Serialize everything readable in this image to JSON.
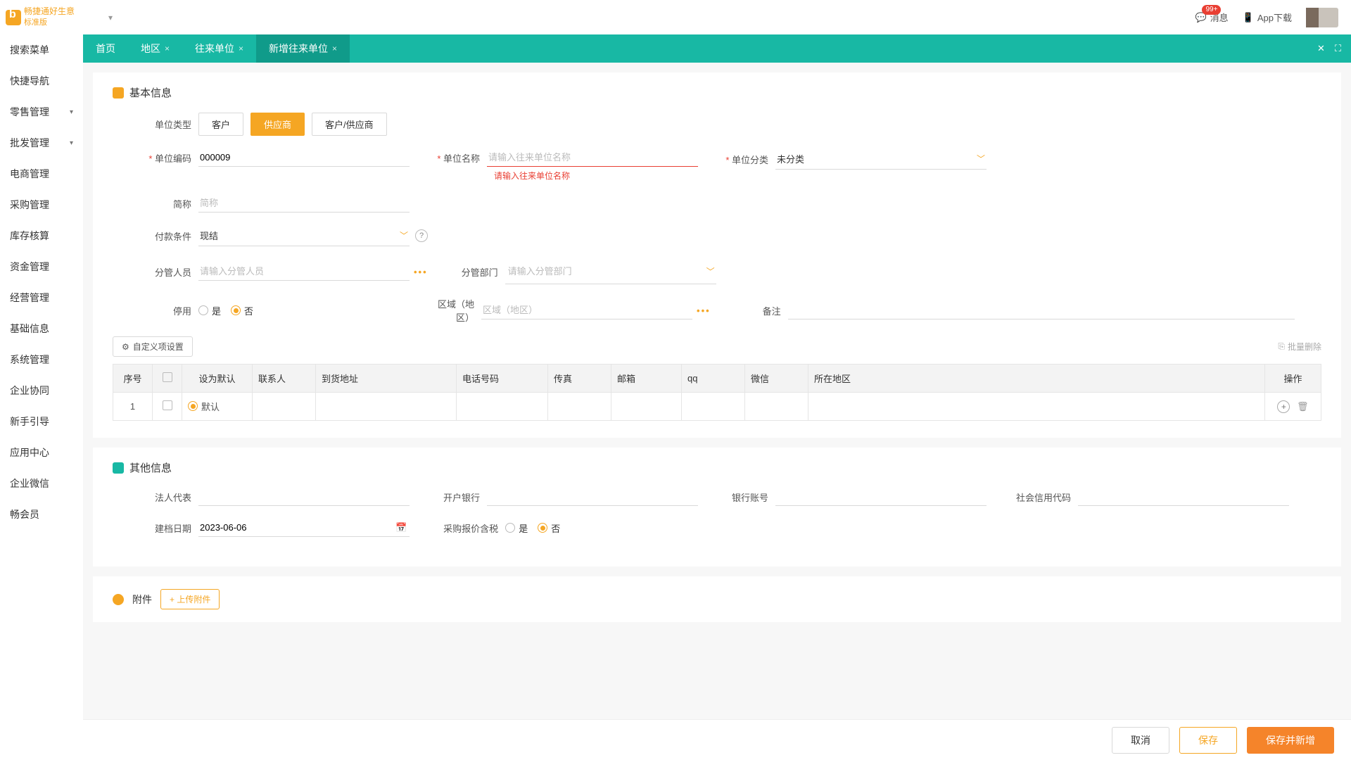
{
  "logo": {
    "brand": "畅捷通好生意",
    "edition": "标准版"
  },
  "topbar": {
    "msg_label": "消息",
    "msg_badge": "99+",
    "download_label": "App下载"
  },
  "sidebar": {
    "items": [
      {
        "label": "搜索菜单",
        "expandable": false
      },
      {
        "label": "快捷导航",
        "expandable": false
      },
      {
        "label": "零售管理",
        "expandable": true
      },
      {
        "label": "批发管理",
        "expandable": true
      },
      {
        "label": "电商管理",
        "expandable": false
      },
      {
        "label": "采购管理",
        "expandable": false
      },
      {
        "label": "库存核算",
        "expandable": false
      },
      {
        "label": "资金管理",
        "expandable": false
      },
      {
        "label": "经营管理",
        "expandable": false
      },
      {
        "label": "基础信息",
        "expandable": false
      },
      {
        "label": "系统管理",
        "expandable": false
      },
      {
        "label": "企业协同",
        "expandable": false
      },
      {
        "label": "新手引导",
        "expandable": false
      },
      {
        "label": "应用中心",
        "expandable": false
      },
      {
        "label": "企业微信",
        "expandable": false
      },
      {
        "label": "畅会员",
        "expandable": false
      }
    ]
  },
  "tabs": [
    {
      "label": "首页",
      "closable": false,
      "active": false
    },
    {
      "label": "地区",
      "closable": true,
      "active": false
    },
    {
      "label": "往来单位",
      "closable": true,
      "active": false
    },
    {
      "label": "新增往来单位",
      "closable": true,
      "active": true
    }
  ],
  "basic": {
    "section_title": "基本信息",
    "unit_type_label": "单位类型",
    "unit_type_options": [
      "客户",
      "供应商",
      "客户/供应商"
    ],
    "unit_type_selected": 1,
    "code_label": "单位编码",
    "code_value": "000009",
    "name_label": "单位名称",
    "name_placeholder": "请输入往来单位名称",
    "name_error": "请输入往来单位名称",
    "category_label": "单位分类",
    "category_value": "未分类",
    "short_label": "简称",
    "short_placeholder": "简称",
    "pay_label": "付款条件",
    "pay_value": "现结",
    "manager_label": "分管人员",
    "manager_placeholder": "请输入分管人员",
    "dept_label": "分管部门",
    "dept_placeholder": "请输入分管部门",
    "disabled_label": "停用",
    "yes": "是",
    "no": "否",
    "region_label": "区域（地区）",
    "region_placeholder": "区域（地区）",
    "remark_label": "备注",
    "custom_btn": "自定义项设置",
    "bulk_delete": "批量删除"
  },
  "contact_table": {
    "headers": [
      "序号",
      "",
      "设为默认",
      "联系人",
      "到货地址",
      "电话号码",
      "传真",
      "邮箱",
      "qq",
      "微信",
      "所在地区",
      "操作"
    ],
    "row1": {
      "idx": "1",
      "default_label": "默认"
    }
  },
  "other": {
    "section_title": "其他信息",
    "legal_label": "法人代表",
    "bank_label": "开户银行",
    "account_label": "银行账号",
    "credit_label": "社会信用代码",
    "date_label": "建档日期",
    "date_value": "2023-06-06",
    "tax_label": "采购报价含税"
  },
  "attach": {
    "title": "附件",
    "upload_btn": "+ 上传附件"
  },
  "footer": {
    "cancel": "取消",
    "save": "保存",
    "save_new": "保存并新增"
  },
  "colors": {
    "teal": "#18b8a4",
    "teal_dark": "#109b8a",
    "orange": "#f5a623",
    "orange_dark": "#f5842a",
    "red": "#e93f33",
    "border": "#d9d9d9",
    "muted": "#bbb"
  }
}
